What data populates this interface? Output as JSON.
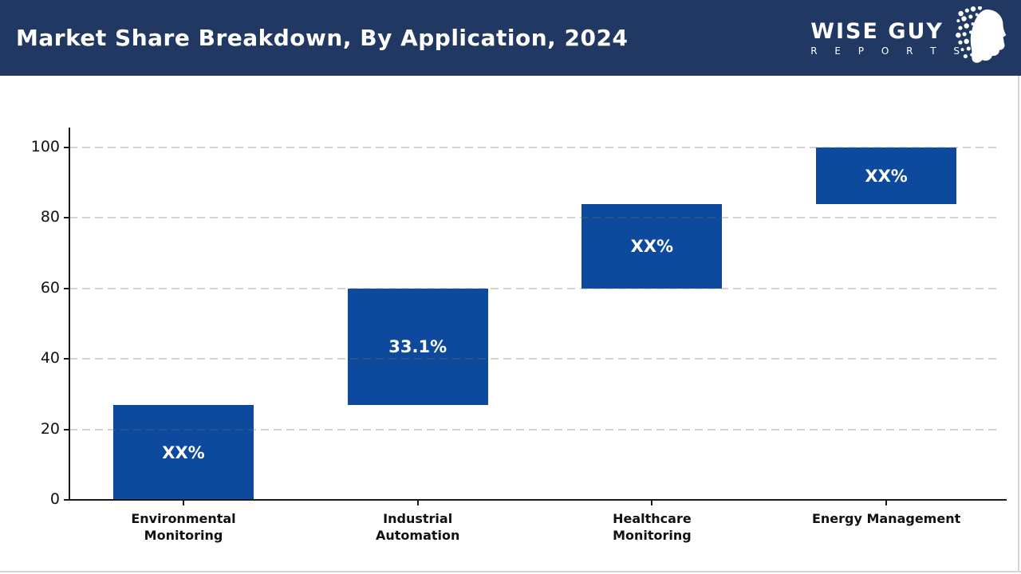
{
  "header": {
    "title": "Market Share Breakdown, By Application, 2024",
    "background": "#213863",
    "logo": {
      "name": "WISE GUY",
      "sub": "R E P O R T S"
    }
  },
  "watermark": {
    "line1": "WISE GUY",
    "line2": "R E P O R T S"
  },
  "chart_data": {
    "type": "bar",
    "subtype": "waterfall",
    "title": "Market Share Breakdown, By Application, 2024",
    "categories": [
      "Environmental Monitoring",
      "Industrial Automation",
      "Healthcare Monitoring",
      "Energy Management"
    ],
    "category_lines": [
      [
        "Environmental",
        "Monitoring"
      ],
      [
        "Industrial",
        "Automation"
      ],
      [
        "Healthcare",
        "Monitoring"
      ],
      [
        "Energy Management"
      ]
    ],
    "segments": [
      {
        "category": "Environmental Monitoring",
        "start": 0,
        "end": 26.9,
        "label": "XX%"
      },
      {
        "category": "Industrial Automation",
        "start": 26.9,
        "end": 60,
        "label": "33.1%"
      },
      {
        "category": "Healthcare Monitoring",
        "start": 60,
        "end": 83.9,
        "label": "XX%"
      },
      {
        "category": "Energy Management",
        "start": 83.9,
        "end": 100,
        "label": "XX%"
      }
    ],
    "yticks": [
      0,
      20,
      40,
      60,
      80,
      100
    ],
    "ylim": [
      0,
      105
    ],
    "xlabel": "",
    "ylabel": "",
    "grid": {
      "axis": "y",
      "style": "dashed"
    },
    "legend": "none",
    "bar_color": "#0d499c",
    "bar_label_color": "#ffffff"
  }
}
